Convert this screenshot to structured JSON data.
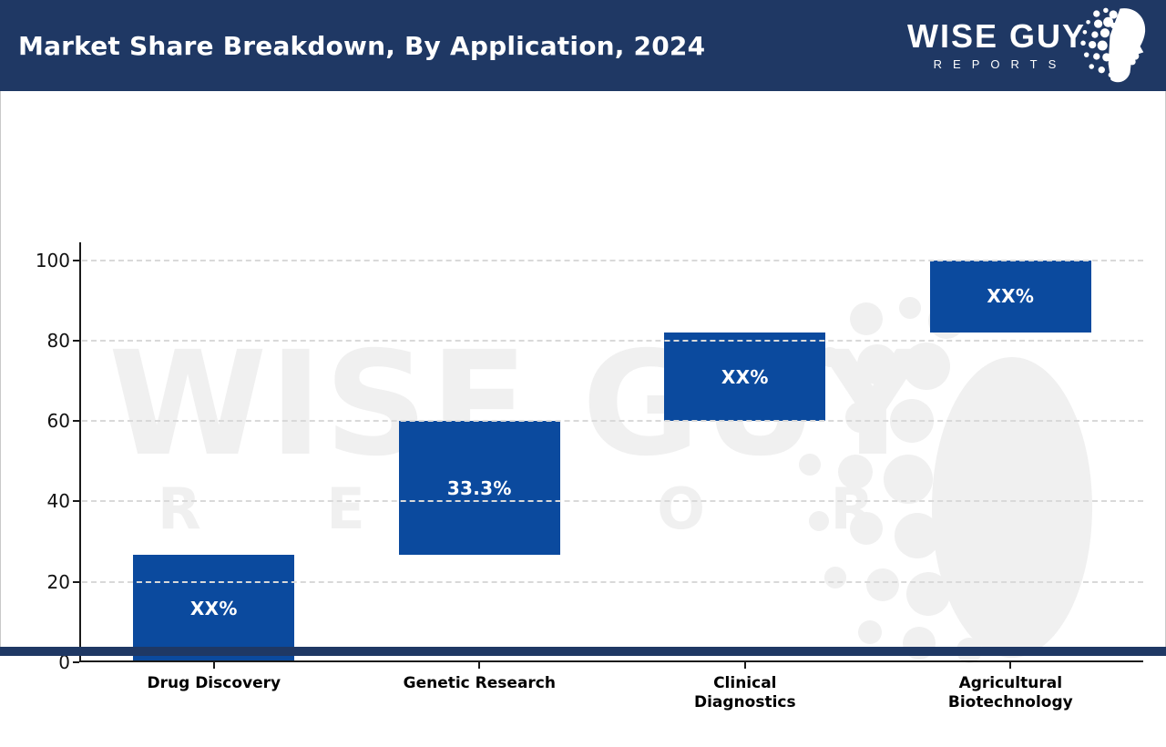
{
  "header": {
    "title": "Market Share Breakdown, By Application, 2024",
    "logo": {
      "name": "WISE GUY",
      "sub": "REPORTS"
    }
  },
  "watermark": {
    "big_text": "WISE GUY",
    "sub_text": "R E P O R T S"
  },
  "chart_data": {
    "type": "bar",
    "variant": "floating-waterfall-segments",
    "title": "Market Share Breakdown, By Application, 2024",
    "categories": [
      "Drug Discovery",
      "Genetic Research",
      "Clinical Diagnostics",
      "Agricultural Biotechnology"
    ],
    "category_label_lines": [
      [
        "Drug Discovery"
      ],
      [
        "Genetic Research"
      ],
      [
        "Clinical",
        "Diagnostics"
      ],
      [
        "Agricultural",
        "Biotechnology"
      ]
    ],
    "segments": [
      {
        "category": "Drug Discovery",
        "start": 0,
        "end": 26.7,
        "label": "XX%"
      },
      {
        "category": "Genetic Research",
        "start": 26.7,
        "end": 60,
        "label": "33.3%"
      },
      {
        "category": "Clinical Diagnostics",
        "start": 60,
        "end": 82,
        "label": "XX%"
      },
      {
        "category": "Agricultural Biotechnology",
        "start": 82,
        "end": 100,
        "label": "XX%"
      }
    ],
    "ylim": [
      0,
      100
    ],
    "yticks": [
      0,
      20,
      40,
      60,
      80,
      100
    ],
    "xlabel": "",
    "ylabel": "",
    "grid": {
      "horizontal": true,
      "style": "dashed",
      "drawn_over_bars": true
    },
    "legend": "none"
  },
  "colors": {
    "header_bg": "#1f3864",
    "footer_bg": "#1f3864",
    "bar": "#0b4a9e",
    "grid_line": "#d9d9d9",
    "axis": "#1a1a1a",
    "bar_label_text": "#ffffff",
    "watermark": "#f0f0f0"
  }
}
